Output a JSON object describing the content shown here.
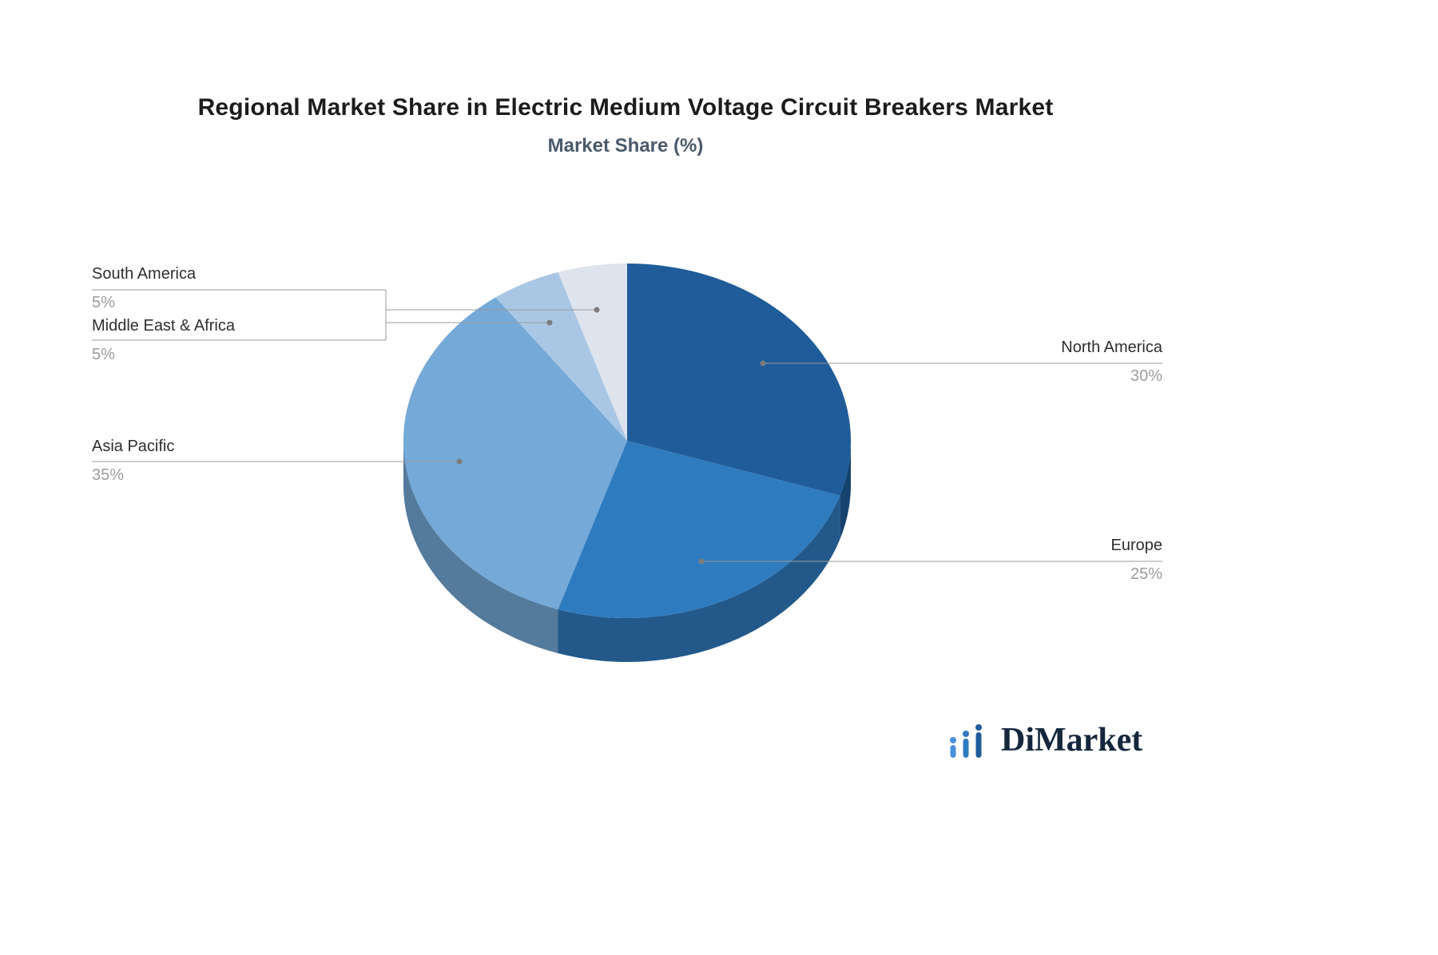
{
  "header": {
    "title": "Regional Market Share in Electric Medium Voltage Circuit Breakers Market",
    "subtitle": "Market Share (%)"
  },
  "logo": {
    "text": "DiMarket"
  },
  "chart_data": {
    "type": "pie",
    "title": "Regional Market Share in Electric Medium Voltage Circuit Breakers Market",
    "subtitle": "Market Share (%)",
    "unit": "%",
    "categories": [
      "North America",
      "Europe",
      "Asia Pacific",
      "Middle East & Africa",
      "South America"
    ],
    "values": [
      30,
      25,
      35,
      5,
      5
    ],
    "display_values": [
      "30%",
      "25%",
      "35%",
      "5%",
      "5%"
    ],
    "colors": [
      "#1f5c99",
      "#2f7bbf",
      "#74a9d8",
      "#a9c7e4",
      "#dde4ed"
    ],
    "start_angle_deg": -90,
    "direction": "clockwise",
    "effect_3d": true,
    "legend_position": "none",
    "label_style": {
      "name_color": "#2e2e2e",
      "value_color": "#9b9b9b"
    }
  }
}
